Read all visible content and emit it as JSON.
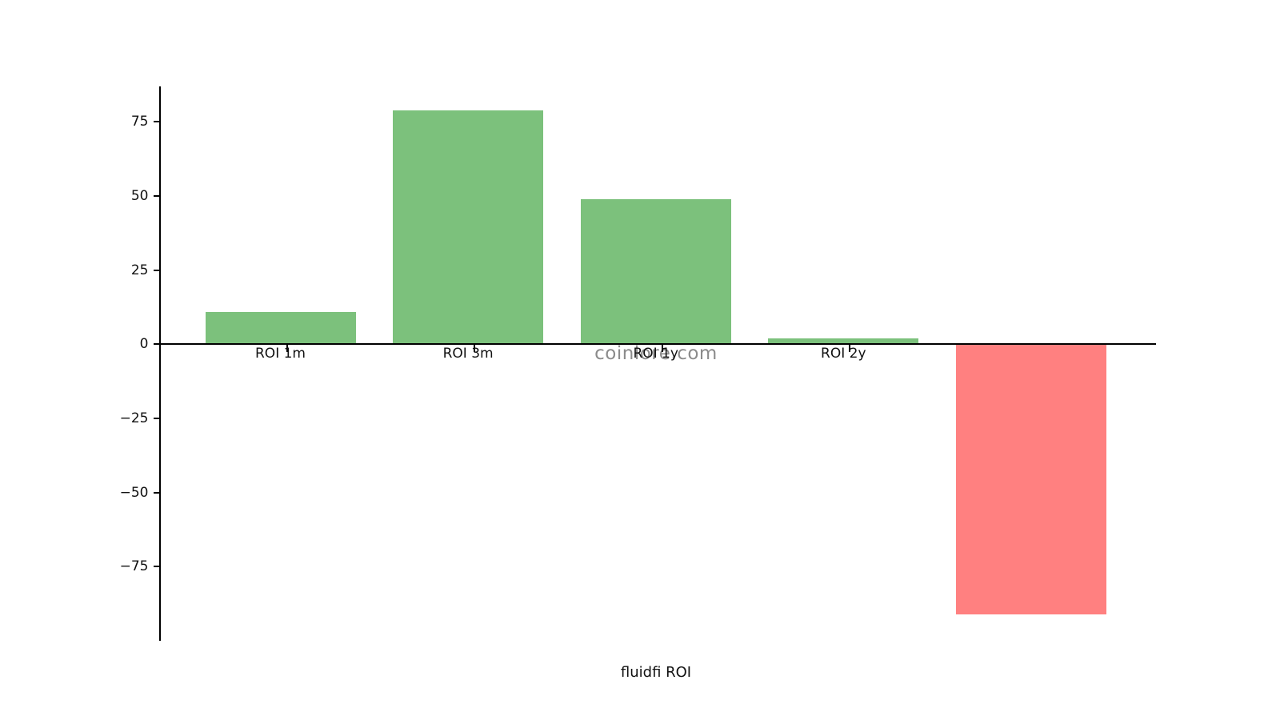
{
  "page": {
    "background": "#ffffff"
  },
  "chart_data": {
    "type": "bar",
    "title": "fluidfi ROI",
    "watermark": "coinlore.com",
    "categories": [
      "ROI 1m",
      "ROI 3m",
      "ROI 1y",
      "ROI 2y",
      ""
    ],
    "values": [
      11,
      79,
      49,
      2,
      -91
    ],
    "positive_color": "#7cc17c",
    "negative_color": "#ff8080",
    "axis_color": "#000000",
    "text_color": "#111111",
    "watermark_color": "#8b8b8b",
    "yticks": [
      75,
      50,
      25,
      0,
      -25,
      -50,
      -75
    ],
    "ylim": [
      -100,
      87
    ],
    "xlabel": "",
    "ylabel": "",
    "grid": false,
    "legend": null
  }
}
